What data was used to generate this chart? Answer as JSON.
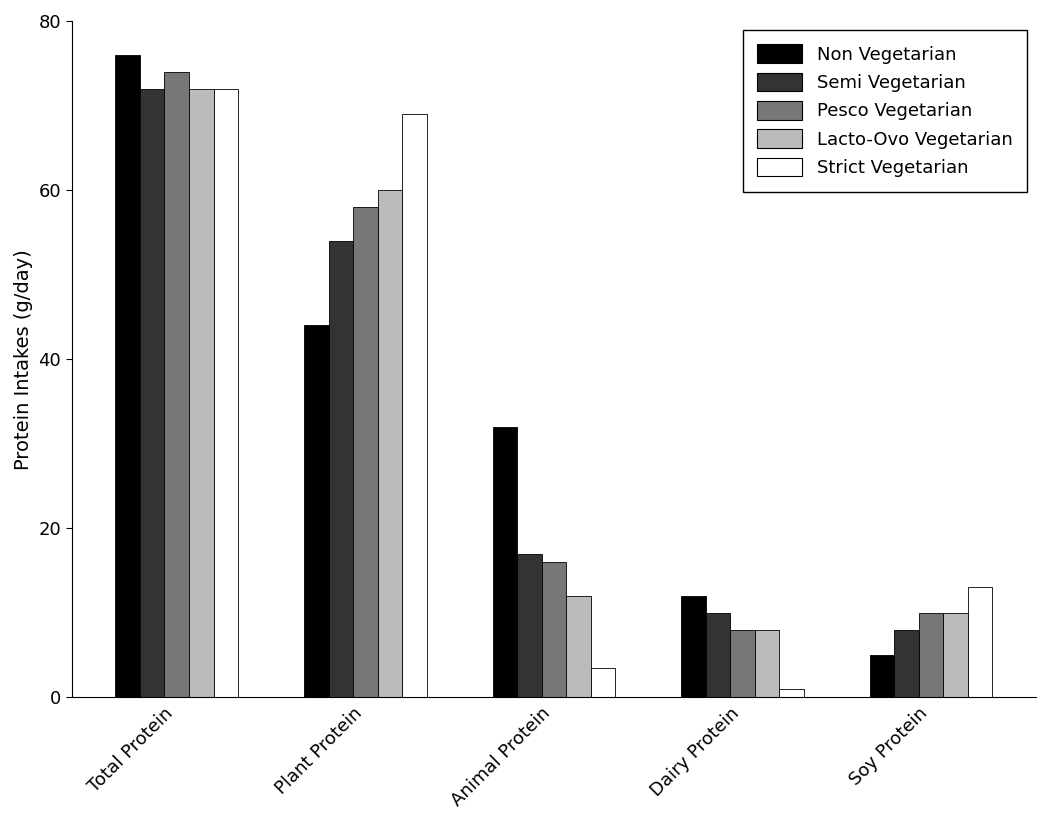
{
  "categories": [
    "Total Protein",
    "Plant Protein",
    "Animal Protein",
    "Dairy Protein",
    "Soy Protein"
  ],
  "groups": [
    "Non Vegetarian",
    "Semi Vegetarian",
    "Pesco Vegetarian",
    "Lacto-Ovo Vegetarian",
    "Strict Vegetarian"
  ],
  "values": [
    [
      76,
      72,
      74,
      72,
      72
    ],
    [
      44,
      54,
      58,
      60,
      69
    ],
    [
      32,
      17,
      16,
      12,
      3.5
    ],
    [
      12,
      10,
      8,
      8,
      1
    ],
    [
      5,
      8,
      10,
      10,
      13
    ]
  ],
  "bar_colors": [
    "#000000",
    "#333333",
    "#777777",
    "#bbbbbb",
    "#ffffff"
  ],
  "bar_edgecolors": [
    "#000000",
    "#000000",
    "#000000",
    "#000000",
    "#000000"
  ],
  "ylabel": "Protein Intakes (g/day)",
  "ylim": [
    0,
    80
  ],
  "yticks": [
    0,
    20,
    40,
    60,
    80
  ],
  "bar_width": 0.13,
  "legend_loc": "upper right",
  "background_color": "#ffffff",
  "tick_fontsize": 13,
  "label_fontsize": 14,
  "legend_fontsize": 13
}
